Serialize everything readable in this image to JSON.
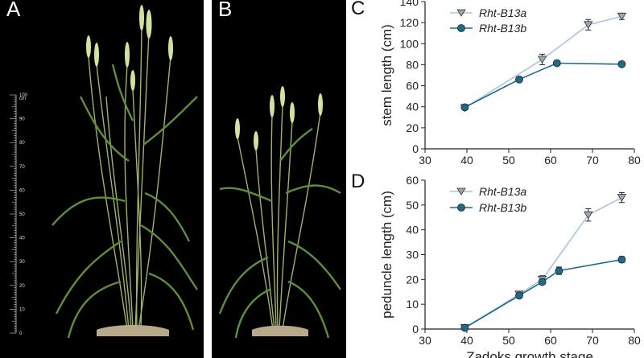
{
  "panels": {
    "a": "A",
    "b": "B",
    "c": "C",
    "d": "D"
  },
  "ruler": {
    "unit": "cm",
    "labels": [
      "100",
      "90",
      "80",
      "70",
      "60",
      "50",
      "40",
      "30",
      "20",
      "10",
      "0"
    ]
  },
  "colors": {
    "rht_b13a": "#a9c3dc",
    "rht_b13b": "#1f6a8a",
    "marker_b13b": "#1f6a8a",
    "marker_b13a": "#9aa7b3"
  },
  "chart_data": [
    {
      "type": "line",
      "panel": "C",
      "title": "",
      "xlabel": "",
      "ylabel": "stem length (cm)",
      "xlim": [
        30,
        80
      ],
      "ylim": [
        0,
        140
      ],
      "xticks": [
        "30",
        "40",
        "50",
        "60",
        "70",
        "80"
      ],
      "yticks": [
        "0",
        "20",
        "40",
        "60",
        "80",
        "100",
        "120",
        "140"
      ],
      "legend_position": "top-left",
      "series": [
        {
          "name": "Rht-B13a",
          "marker": "triangle-down",
          "x": [
            39.5,
            58,
            69,
            77
          ],
          "y": [
            39,
            85,
            118,
            126
          ],
          "err": [
            1.5,
            5,
            5,
            3
          ]
        },
        {
          "name": "Rht-B13b",
          "marker": "circle",
          "x": [
            39.5,
            52.5,
            61.5,
            77
          ],
          "y": [
            39.5,
            66,
            81.5,
            80.5
          ],
          "err": [
            1,
            1,
            1.5,
            1.5
          ]
        }
      ]
    },
    {
      "type": "line",
      "panel": "D",
      "title": "",
      "xlabel": "Zadoks growth stage",
      "ylabel": "peduncle length (cm)",
      "xlim": [
        30,
        80
      ],
      "ylim": [
        0,
        60
      ],
      "xticks": [
        "30",
        "40",
        "50",
        "60",
        "70",
        "80"
      ],
      "yticks": [
        "0",
        "10",
        "20",
        "30",
        "40",
        "50",
        "60"
      ],
      "legend_position": "top-left",
      "series": [
        {
          "name": "Rht-B13a",
          "marker": "triangle-down",
          "x": [
            39.5,
            52.5,
            58,
            69,
            77
          ],
          "y": [
            0.5,
            14,
            20,
            46,
            53
          ],
          "err": [
            0.5,
            0.8,
            1.5,
            2.5,
            2
          ]
        },
        {
          "name": "Rht-B13b",
          "marker": "circle",
          "x": [
            39.5,
            52.5,
            58,
            62,
            77
          ],
          "y": [
            0.5,
            13.5,
            19,
            23.5,
            28
          ],
          "err": [
            0.5,
            0.8,
            1,
            1.5,
            1.2
          ]
        }
      ]
    }
  ]
}
